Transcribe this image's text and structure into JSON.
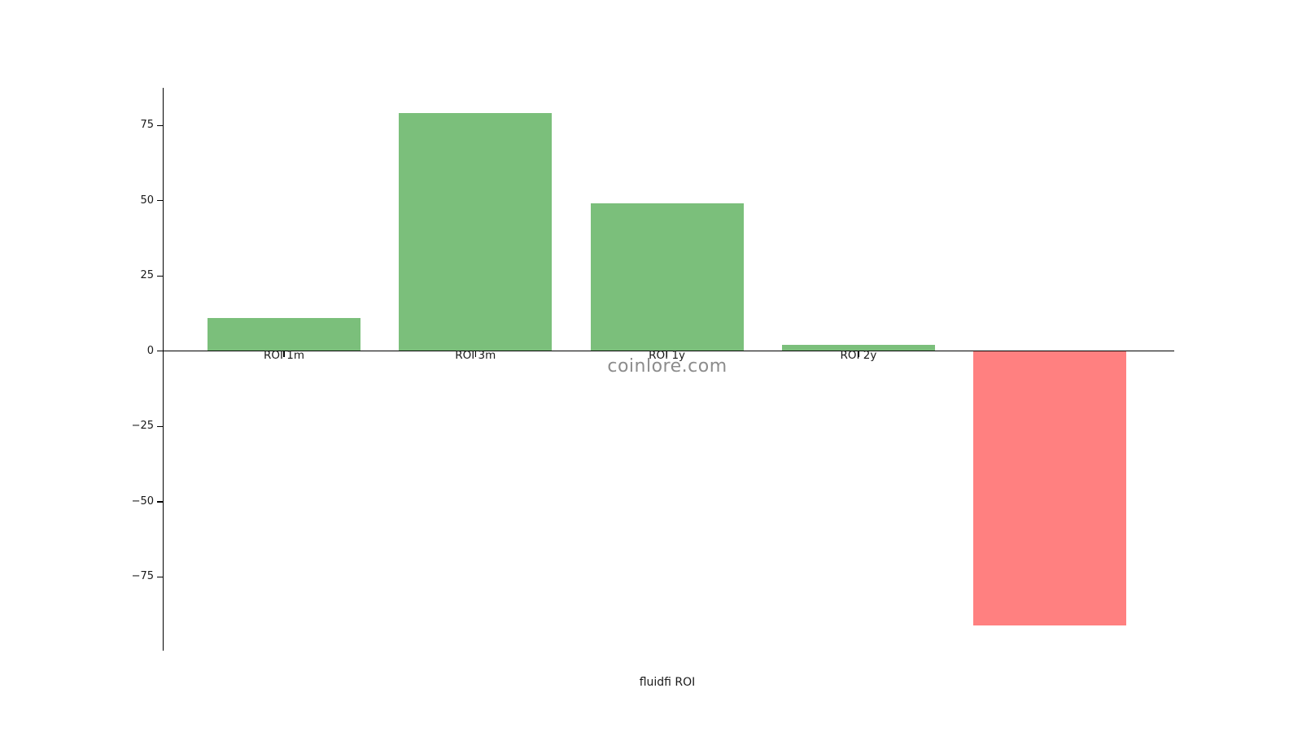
{
  "chart_data": {
    "type": "bar",
    "title": "fluidfi ROI",
    "watermark": "coinlore.com",
    "categories": [
      "ROI 1m",
      "ROI 3m",
      "ROI 1y",
      "ROI 2y",
      ""
    ],
    "values": [
      11,
      79,
      49,
      2,
      -91
    ],
    "yticks": [
      75,
      50,
      25,
      0,
      -25,
      -50,
      -75
    ],
    "ylim": [
      -99.5,
      87.5
    ],
    "xlabel": "fluidfi ROI",
    "ylabel": "",
    "grid": false,
    "legend": false,
    "positive_color": "#7bbf7b",
    "negative_color": "#ff8080",
    "axis_color": "#000000",
    "tick_label_color": "#1a1a1a",
    "watermark_color": "#8c8c8c",
    "background_color": "#ffffff"
  }
}
